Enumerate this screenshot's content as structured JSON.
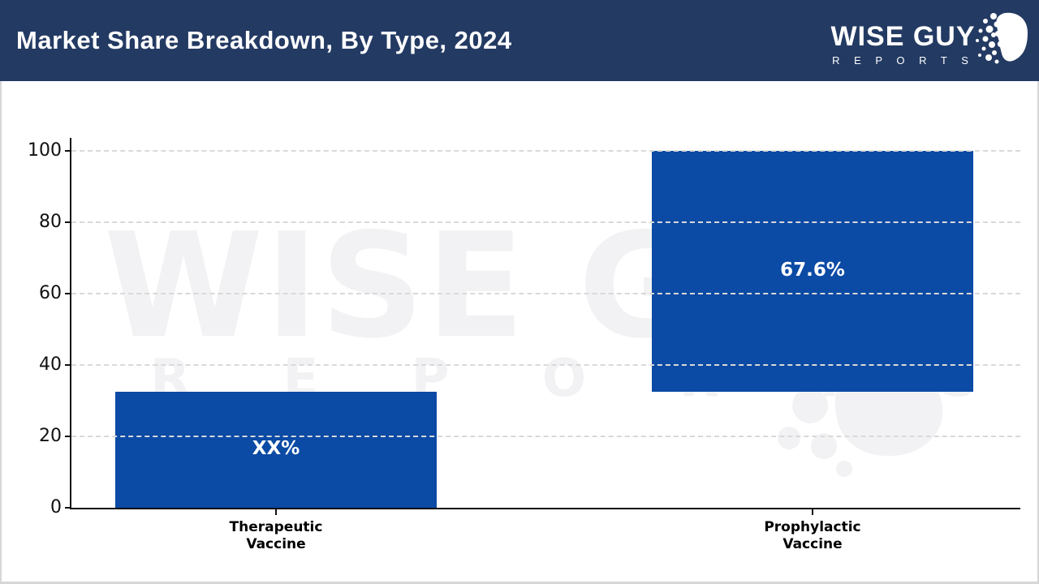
{
  "header": {
    "title": "Market Share Breakdown, By Type, 2024",
    "logo": {
      "line1": "WISE GUY",
      "line2": "R E P O R T S"
    }
  },
  "watermark": {
    "line1": "WISE GUY",
    "line2": "R E P O R T S"
  },
  "chart_data": {
    "type": "bar",
    "title": "Market Share Breakdown, By Type, 2024",
    "categories": [
      "Therapeutic Vaccine",
      "Prophylactic Vaccine"
    ],
    "x_labels": [
      [
        "Therapeutic",
        "Vaccine"
      ],
      [
        "Prophylactic",
        "Vaccine"
      ]
    ],
    "bars": [
      {
        "category": "Therapeutic Vaccine",
        "label": "XX%",
        "start": 0,
        "end": 32.4
      },
      {
        "category": "Prophylactic Vaccine",
        "label": "67.6%",
        "start": 32.4,
        "end": 100,
        "value": 67.6
      }
    ],
    "layout_note": "waterfall-stacked: second bar begins at top of first",
    "y_ticks": [
      0,
      20,
      40,
      60,
      80,
      100
    ],
    "ylim": [
      0,
      103.5
    ],
    "grid": "dashed-horizontal",
    "legend": "none",
    "bar_color": "#0b4aa5"
  },
  "colors": {
    "header_bg": "#233a63",
    "bar_blue": "#0b4aa5",
    "gridline": "#d9d9d9",
    "watermark": "#f2f2f4",
    "axis": "#111111",
    "frame_border": "#d7d7d7"
  }
}
